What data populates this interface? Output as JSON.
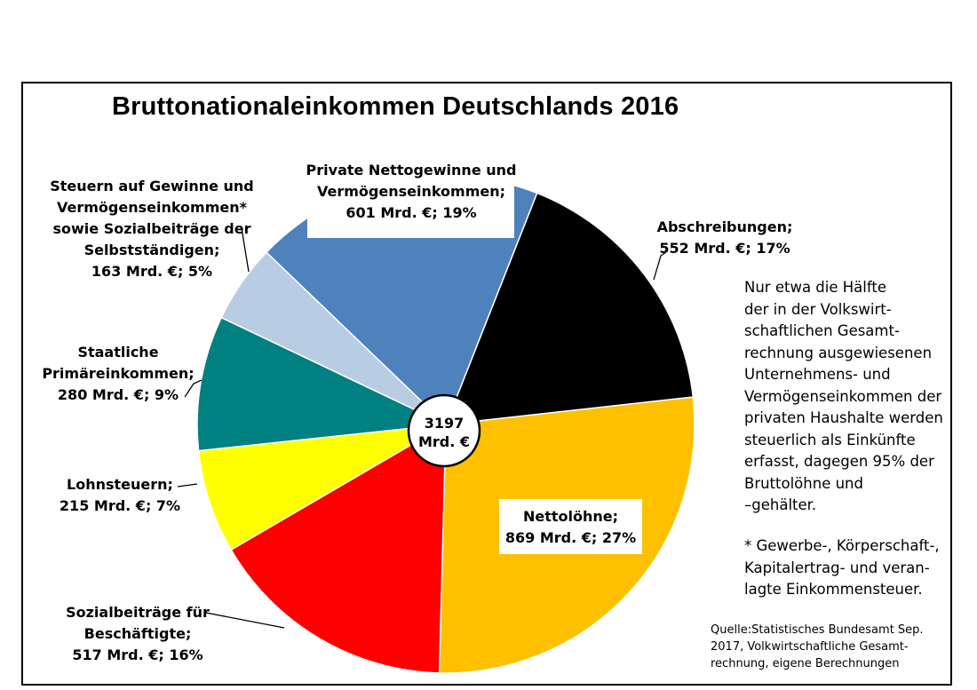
{
  "chart_data": {
    "type": "pie",
    "title": "Bruttonationaleinkommen Deutschlands 2016",
    "total": {
      "value": 3197,
      "line1": "3197",
      "line2": "Mrd. €"
    },
    "slices": [
      {
        "name": "Abschreibungen",
        "value": 552,
        "percent": 17,
        "color": "#000000",
        "label_lines": [
          "Abschreibungen;",
          "552 Mrd. €; 17%"
        ]
      },
      {
        "name": "Nettolöhne",
        "value": 869,
        "percent": 27,
        "color": "#ffc000",
        "label_lines": [
          "Nettolöhne;",
          "869 Mrd. €; 27%"
        ]
      },
      {
        "name": "Sozialbeiträge für Beschäftigte",
        "value": 517,
        "percent": 16,
        "color": "#ff0000",
        "label_lines": [
          "Sozialbeiträge für",
          "Beschäftigte;",
          "517 Mrd. €; 16%"
        ]
      },
      {
        "name": "Lohnsteuern",
        "value": 215,
        "percent": 7,
        "color": "#ffff00",
        "label_lines": [
          "Lohnsteuern;",
          "215 Mrd. €; 7%"
        ]
      },
      {
        "name": "Staatliche Primäreinkommen",
        "value": 280,
        "percent": 9,
        "color": "#008080",
        "label_lines": [
          "Staatliche",
          "Primäreinkommen;",
          "280 Mrd. €; 9%"
        ]
      },
      {
        "name": "Steuern auf Gewinne und Vermögenseinkommen sowie Sozialbeiträge der Selbstständigen",
        "value": 163,
        "percent": 5,
        "color": "#b8cce4",
        "label_lines": [
          "Steuern auf Gewinne und",
          "Vermögenseinkommen*",
          "sowie Sozialbeiträge der",
          "Selbstständigen;",
          "163 Mrd. €; 5%"
        ]
      },
      {
        "name": "Private Nettogewinne und Vermögenseinkommen",
        "value": 601,
        "percent": 19,
        "color": "#4f81bd",
        "label_lines": [
          "Private Nettogewinne und",
          "Vermögenseinkommen;",
          "601 Mrd. €; 19%"
        ]
      }
    ]
  },
  "note": {
    "lines": [
      "Nur etwa die Hälfte",
      "der in der Volkswirt-",
      "schaftlichen Gesamt-",
      "rechnung ausgewiesenen",
      "Unternehmens- und",
      "Vermögenseinkommen der",
      "privaten Haushalte werden",
      "steuerlich als Einkünfte",
      "erfasst, dagegen 95% der",
      "Bruttolöhne und",
      "–gehälter."
    ]
  },
  "footnote": {
    "lines": [
      "* Gewerbe-, Körperschaft-,",
      "Kapitalertrag- und veran-",
      "lagte Einkommensteuer."
    ]
  },
  "source": {
    "lines": [
      "Quelle:Statistisches  Bundesamt Sep.",
      "2017, Volkwirtschaftliche Gesamt-",
      "rechnung, eigene Berechnungen"
    ]
  }
}
